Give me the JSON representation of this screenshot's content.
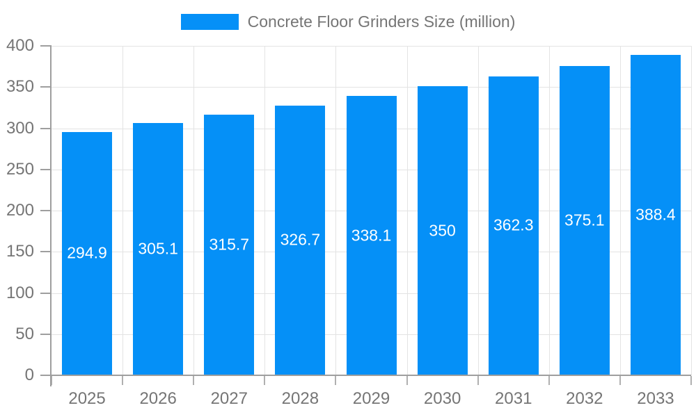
{
  "legend": {
    "label": "Concrete Floor Grinders Size (million)"
  },
  "chart_data": {
    "type": "bar",
    "title": "Concrete Floor Grinders Size (million)",
    "categories": [
      "2025",
      "2026",
      "2027",
      "2028",
      "2029",
      "2030",
      "2031",
      "2032",
      "2033"
    ],
    "values": [
      294.9,
      305.1,
      315.7,
      326.7,
      338.1,
      350,
      362.3,
      375.1,
      388.4
    ],
    "value_labels": [
      "294.9",
      "305.1",
      "315.7",
      "326.7",
      "338.1",
      "350",
      "362.3",
      "375.1",
      "388.4"
    ],
    "xlabel": "",
    "ylabel": "",
    "ylim": [
      0,
      400
    ],
    "y_ticks": [
      0,
      50,
      100,
      150,
      200,
      250,
      300,
      350,
      400
    ],
    "grid": true,
    "legend_position": "top-center",
    "value_labels_position": "inside-middle"
  },
  "colors": {
    "bar": "#0590f7",
    "axis": "#9e9e9e",
    "grid": "#e3e3e3",
    "text": "#757575",
    "value_label": "#ffffff",
    "background": "#ffffff"
  }
}
